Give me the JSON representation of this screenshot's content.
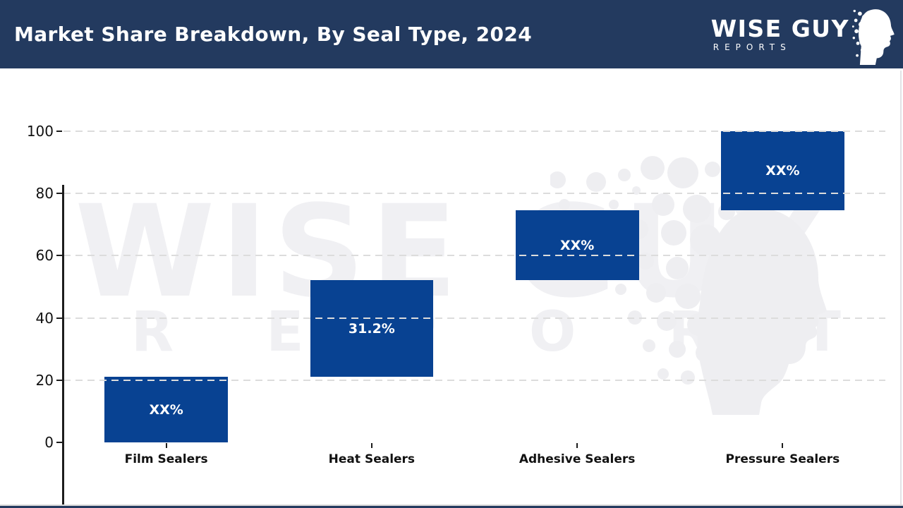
{
  "header": {
    "title": "Market Share Breakdown, By Seal Type, 2024",
    "logo": {
      "line1": "WISE GUY",
      "line2": "REPORTS"
    }
  },
  "watermark": {
    "line1": "WISE GUY",
    "line2": "R E P O R T S"
  },
  "chart_data": {
    "type": "bar",
    "subtype": "floating-segment-waterfall",
    "title": "Market Share Breakdown, By Seal Type, 2024",
    "categories": [
      "Film Sealers",
      "Heat Sealers",
      "Adhesive Sealers",
      "Pressure Sealers"
    ],
    "segments": [
      {
        "category": "Film Sealers",
        "start": 0,
        "end": 21,
        "label": "XX%"
      },
      {
        "category": "Heat Sealers",
        "start": 21,
        "end": 52.2,
        "label": "31.2%"
      },
      {
        "category": "Adhesive Sealers",
        "start": 52.2,
        "end": 74.5,
        "label": "XX%"
      },
      {
        "category": "Pressure Sealers",
        "start": 74.5,
        "end": 100,
        "label": "XX%"
      }
    ],
    "yticks": [
      0,
      20,
      40,
      60,
      80,
      100
    ],
    "ylim": [
      0,
      105
    ],
    "xlabel": "",
    "ylabel": "",
    "grid": "horizontal-dashed",
    "legend": "none",
    "bar_color": "#084292"
  },
  "colors": {
    "header_bg": "#233a5f",
    "footer_bg": "#233a5f",
    "bar": "#084292",
    "gridline": "#dcdcdc",
    "axis": "#1c1c1c",
    "watermark": "#f0f0f3"
  }
}
